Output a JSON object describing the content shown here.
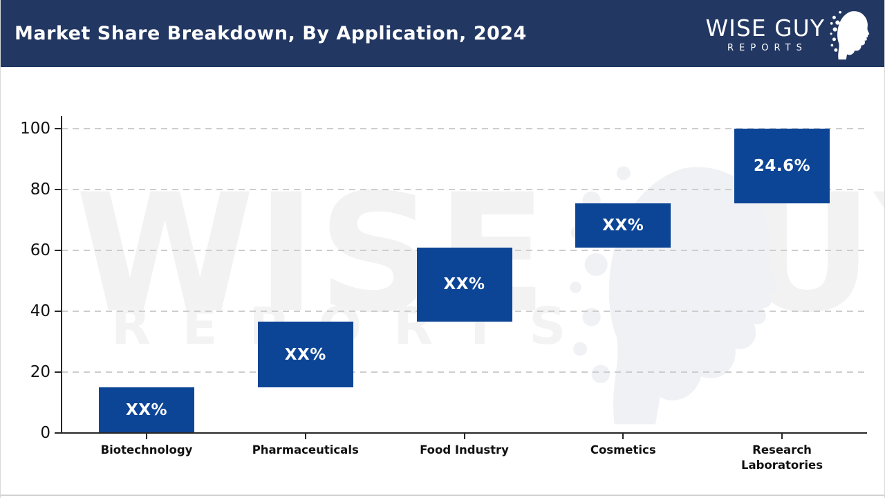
{
  "header": {
    "title": "Market Share Breakdown, By Application, 2024",
    "bg_color": "#223762",
    "logo": {
      "line1": "WISE GUY",
      "line2": "REPORTS"
    }
  },
  "watermark": {
    "line1": "WISE GUY",
    "line2": "REPORTS"
  },
  "chart_data": {
    "type": "bar",
    "subtype": "floating-waterfall",
    "title": "Market Share Breakdown, By Application, 2024",
    "categories": [
      "Biotechnology",
      "Pharmaceuticals",
      "Food Industry",
      "Cosmetics",
      "Research Laboratories"
    ],
    "bars": [
      {
        "category": "Biotechnology",
        "start": 0,
        "end": 15,
        "label": "XX%"
      },
      {
        "category": "Pharmaceuticals",
        "start": 15,
        "end": 36.5,
        "label": "XX%"
      },
      {
        "category": "Food Industry",
        "start": 36.5,
        "end": 61,
        "label": "XX%"
      },
      {
        "category": "Cosmetics",
        "start": 61,
        "end": 75.4,
        "label": "XX%"
      },
      {
        "category": "Research Laboratories",
        "start": 75.4,
        "end": 100,
        "label": "24.6%"
      }
    ],
    "xlabel": "",
    "ylabel": "",
    "ylim": [
      0,
      100
    ],
    "yticks": [
      0,
      20,
      40,
      60,
      80,
      100
    ],
    "grid": "horizontal-dashed",
    "legend": "none",
    "bar_color": "#0d4596",
    "axis_color": "#262626",
    "gridline_color": "#cdcdcd"
  }
}
